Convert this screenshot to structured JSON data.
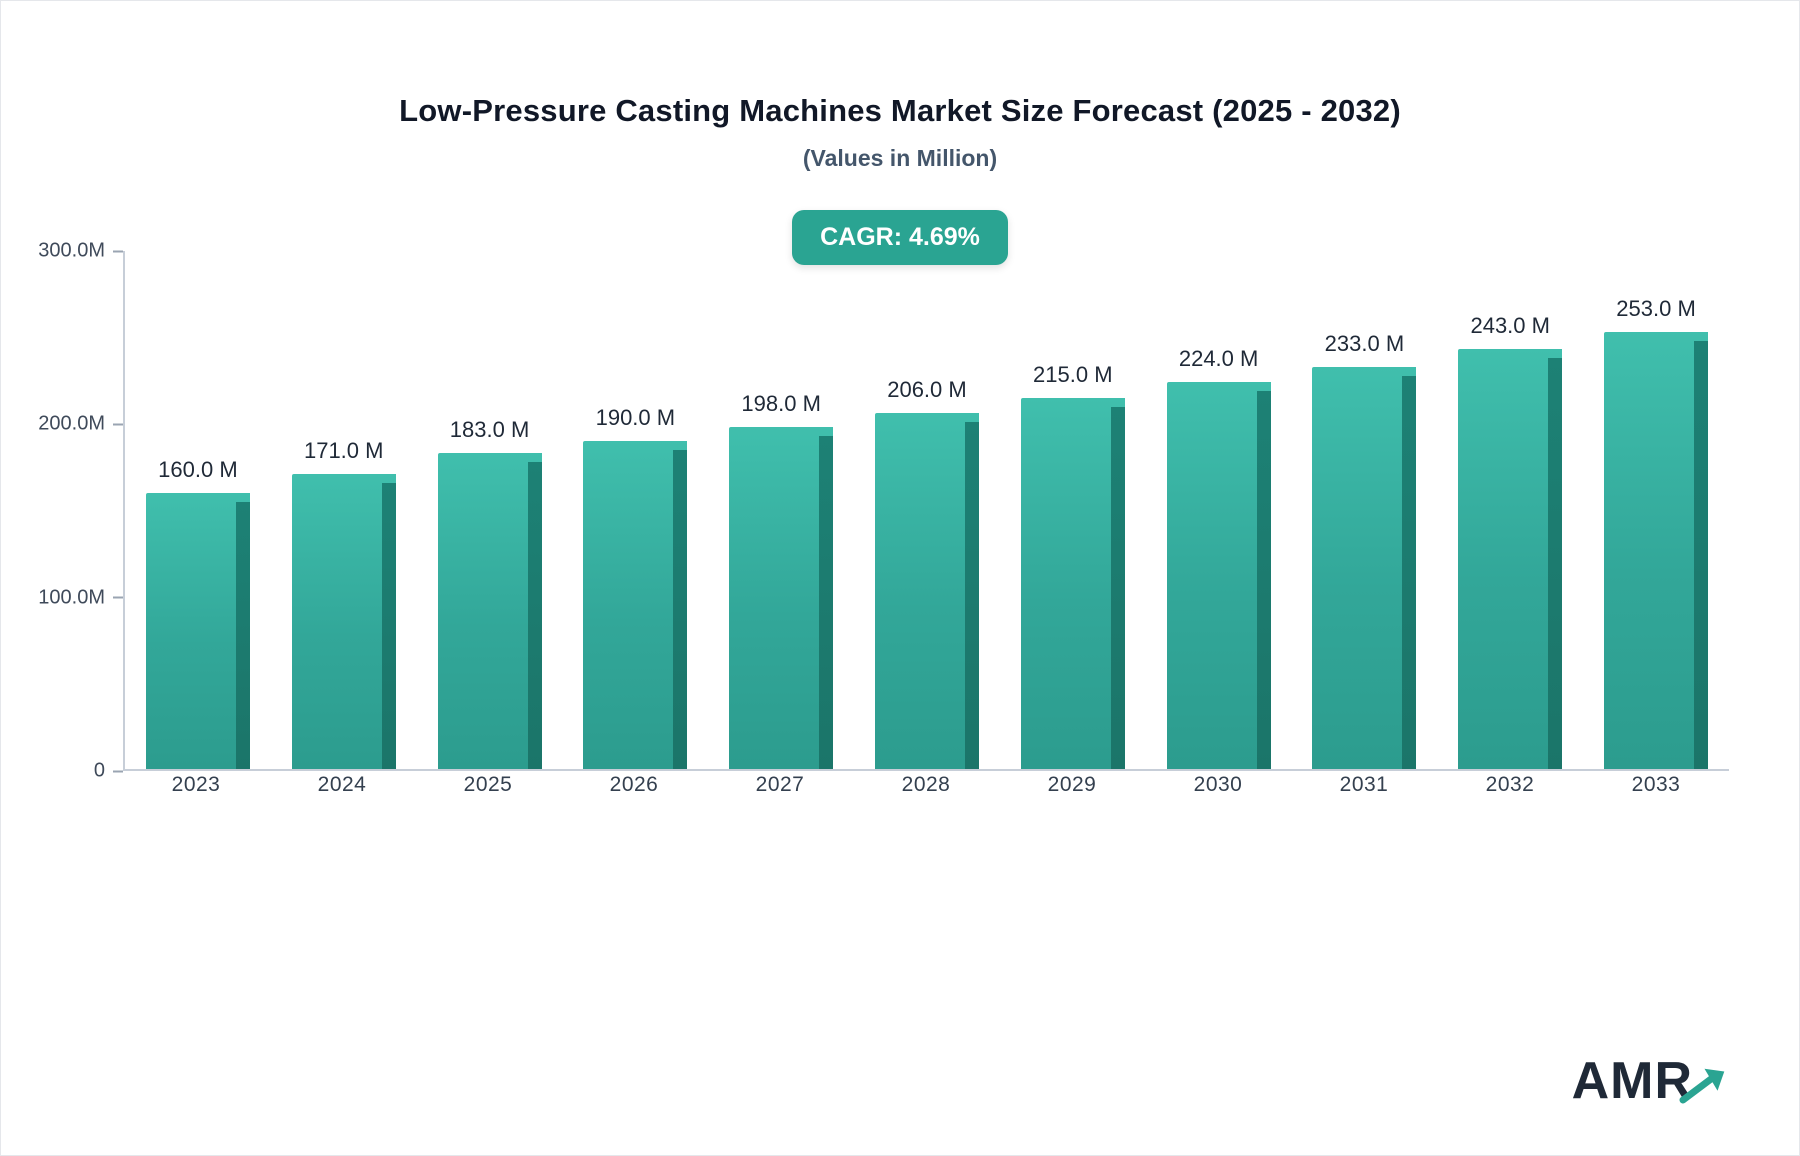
{
  "title": "Low-Pressure Casting Machines Market Size Forecast (2025 - 2032)",
  "subtitle": "(Values in Million)",
  "badge": {
    "label": "CAGR: 4.69%"
  },
  "logo": {
    "text": "AMR"
  },
  "chart_data": {
    "type": "bar",
    "title": "Low-Pressure Casting Machines Market Size Forecast (2025 - 2032)",
    "subtitle": "(Values in Million)",
    "categories": [
      "2023",
      "2024",
      "2025",
      "2026",
      "2027",
      "2028",
      "2029",
      "2030",
      "2031",
      "2032",
      "2033"
    ],
    "values": [
      160,
      171,
      183,
      190,
      198,
      206,
      215,
      224,
      233,
      243,
      253
    ],
    "bar_labels": [
      "160.0 M",
      "171.0 M",
      "183.0 M",
      "190.0 M",
      "198.0 M",
      "206.0 M",
      "215.0 M",
      "224.0 M",
      "233.0 M",
      "243.0 M",
      "253.0 M"
    ],
    "xlabel": "",
    "ylabel": "",
    "ylim": [
      0,
      300
    ],
    "yticks": [
      {
        "value": 300,
        "label": "300.0M"
      },
      {
        "value": 200,
        "label": "200.0M"
      },
      {
        "value": 100,
        "label": "100.0M"
      },
      {
        "value": 0,
        "label": "0"
      }
    ],
    "grid": false,
    "legend": false,
    "bar_color": "#32a799",
    "bar_side_color": "#1d8175",
    "accent_color": "#2aa492"
  }
}
